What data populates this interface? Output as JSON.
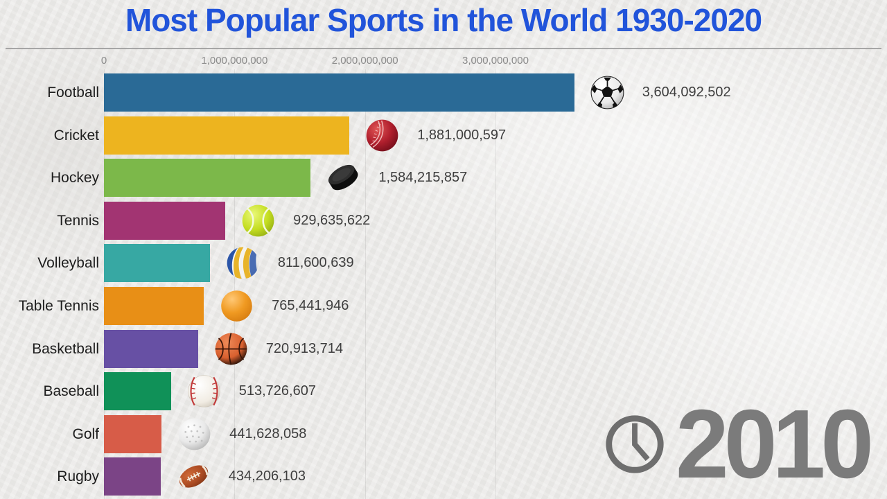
{
  "chart_data": {
    "type": "bar",
    "orientation": "horizontal",
    "title": "Most Popular Sports in the World 1930-2020",
    "title_color": "#2154da",
    "year_label": "2010",
    "xlim": [
      0,
      3000000000
    ],
    "grid": true,
    "x_ticks": [
      {
        "label": "0",
        "value": 0
      },
      {
        "label": "1,000,000,000",
        "value": 1000000000
      },
      {
        "label": "2,000,000,000",
        "value": 2000000000
      },
      {
        "label": "3,000,000,000",
        "value": 3000000000
      }
    ],
    "categories": [
      "Football",
      "Cricket",
      "Hockey",
      "Tennis",
      "Volleyball",
      "Table Tennis",
      "Basketball",
      "Baseball",
      "Golf",
      "Rugby"
    ],
    "values": [
      3604092502,
      1881000597,
      1584215857,
      929635622,
      811600639,
      765441946,
      720913714,
      513726607,
      441628058,
      434206103
    ],
    "value_labels": [
      "3,604,092,502",
      "1,881,000,597",
      "1,584,215,857",
      "929,635,622",
      "811,600,639",
      "765,441,946",
      "720,913,714",
      "513,726,607",
      "441,628,058",
      "434,206,103"
    ],
    "bar_colors": [
      "#2a6a96",
      "#edb41f",
      "#7cb84a",
      "#a23472",
      "#37a8a3",
      "#e88f16",
      "#6750a4",
      "#109158",
      "#d75c48",
      "#7b4486"
    ],
    "icons": [
      "soccer-ball",
      "cricket-ball",
      "hockey-puck",
      "tennis-ball",
      "volleyball",
      "table-tennis-ball",
      "basketball",
      "baseball",
      "golf-ball",
      "rugby-ball"
    ]
  },
  "year_display": {
    "value": "2010",
    "icon": "clock-icon",
    "color": "#7b7b7b"
  }
}
